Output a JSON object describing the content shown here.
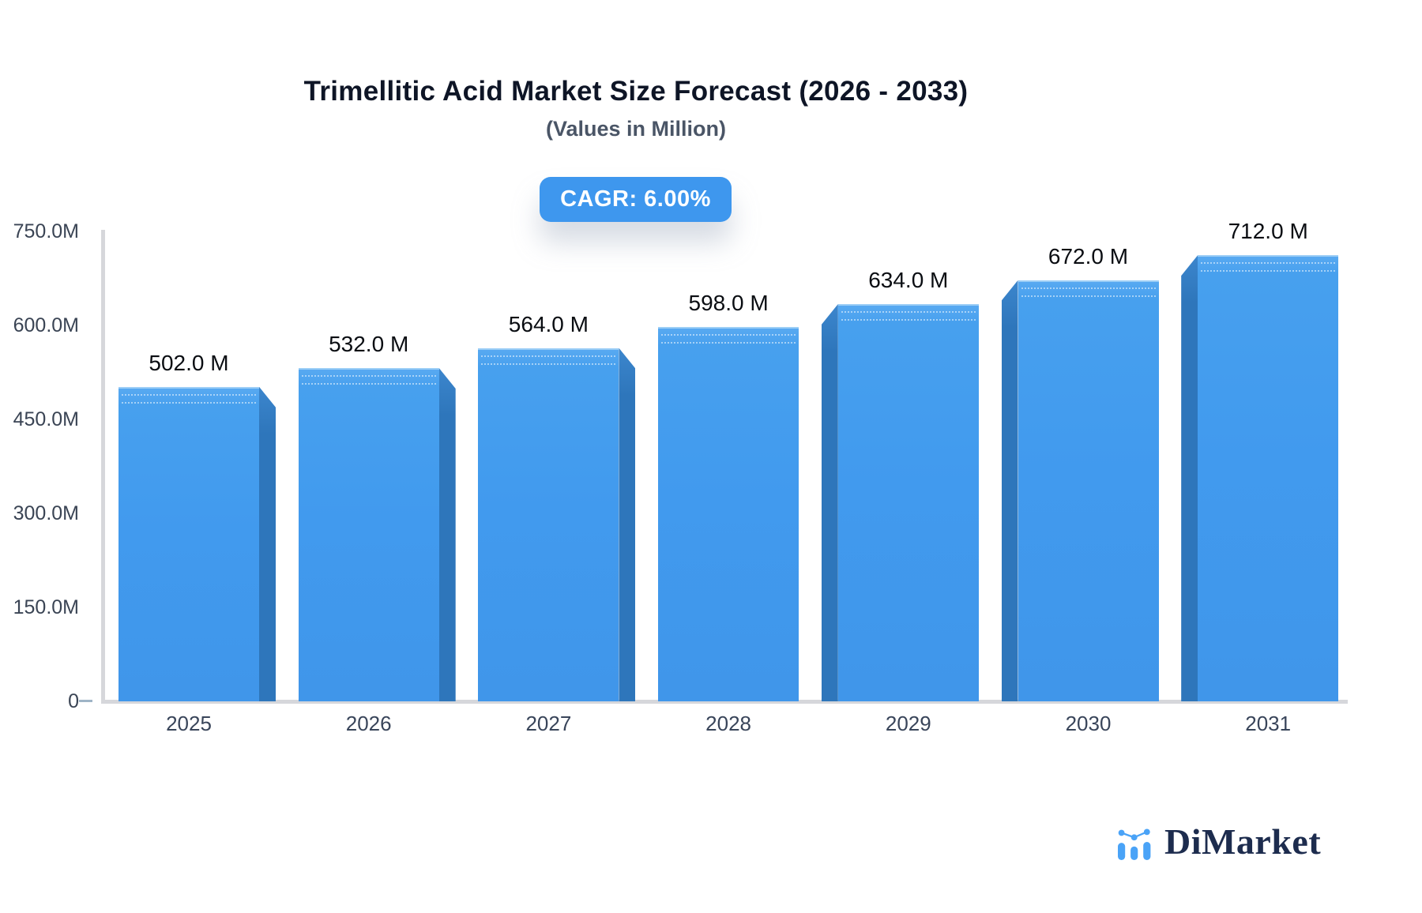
{
  "title": "Trimellitic Acid Market Size Forecast (2026 - 2033)",
  "subtitle": "(Values in Million)",
  "cagr_badge": "CAGR: 6.00%",
  "brand": "DiMarket",
  "colors": {
    "bar_face": "#4aa0ee",
    "bar_side": "#2e76bb",
    "badge_blue": "#3e97ee",
    "axis_gray": "#d6d7db",
    "logo_navy": "#1d2c4e",
    "logo_blue": "#4aa3f7"
  },
  "chart_data": {
    "type": "bar",
    "title": "Trimellitic Acid Market Size Forecast (2026 - 2033)",
    "subtitle": "(Values in Million)",
    "unit": "Million",
    "cagr_percent": 6.0,
    "categories": [
      "2025",
      "2026",
      "2027",
      "2028",
      "2029",
      "2030",
      "2031"
    ],
    "values": [
      502,
      532,
      564,
      598,
      634,
      672,
      712
    ],
    "bar_labels": [
      "502.0 M",
      "532.0 M",
      "564.0 M",
      "598.0 M",
      "634.0 M",
      "672.0 M",
      "712.0 M"
    ],
    "y_ticks": [
      {
        "label": "750.0M",
        "value": 750
      },
      {
        "label": "600.0M",
        "value": 600
      },
      {
        "label": "450.0M",
        "value": 450
      },
      {
        "label": "300.0M",
        "value": 300
      },
      {
        "label": "150.0M",
        "value": 150
      },
      {
        "label": "0",
        "value": 0
      }
    ],
    "ylim": [
      0,
      750
    ],
    "grid": false,
    "legend": false,
    "effect": "pseudo-3d bars, side face toward chart center"
  }
}
